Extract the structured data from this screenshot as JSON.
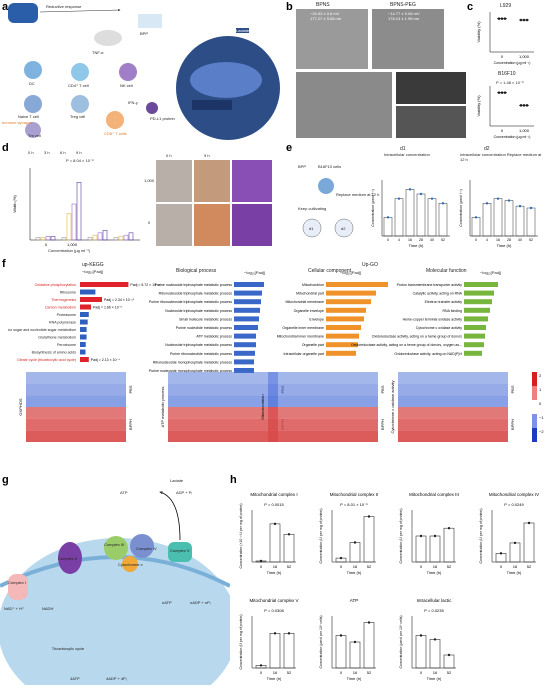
{
  "panel_labels": [
    "a",
    "b",
    "c",
    "d",
    "e",
    "f",
    "g",
    "h"
  ],
  "a": {
    "reductive_response": "Reductive response",
    "bpp": "BPP",
    "tnf": "TNF-α",
    "dc": "DC",
    "cd4": "CD4⁺ T cell",
    "nk": "NK cell",
    "naive": "Naive T cell",
    "treg": "Treg cell",
    "immune_synapse": "Immune synapse",
    "cd8": "CD8⁺ T cells",
    "tm": "Tm cell",
    "ifn": "IFN-γ",
    "pdl1": "PD-L1 protein",
    "lactate": "Lactate",
    "mitochondria_label": "Mitochondria"
  },
  "b": {
    "bpns": "BPNS",
    "bpns_peg": "BPNS-PEG",
    "zeta1": "−24.93 ± 0.6 mV",
    "size1": "177.27 ± 3.06 nm",
    "zeta2": "−14.77 ± 0.06 mV",
    "size2": "178.13 ± 1.95 nm"
  },
  "c": {
    "title1": "L929",
    "title2": "B16F10",
    "p2": "P = 1.48 × 10⁻⁸",
    "ylabel": "Viability (%)",
    "xlabel": "Concentration (μg ml⁻¹)",
    "x": [
      "0",
      "1,000"
    ]
  },
  "d": {
    "legend": [
      "0 h",
      "3 h",
      "6 h",
      "9 h"
    ],
    "p": "P = 8.04 × 10⁻⁸",
    "ylabel": "Width (%)",
    "xlabel": "Concentration (μg ml⁻¹)",
    "x": [
      "0",
      "1,000"
    ],
    "img_cols": [
      "0 h",
      "9 h"
    ],
    "img_rows": [
      "1,000",
      "0"
    ]
  },
  "e": {
    "bpp": "BPP",
    "b16": "B16F10 cells",
    "keep": "Keep cultivating",
    "replace": "Replace medium at 12 h",
    "d1": "d1",
    "d2": "d2",
    "title1": "Intracellular concentration",
    "title2": "Intracellular concentration Replace medium at 12 h",
    "ylabel": "Concentration (μmol l⁻¹)",
    "xlabel": "Time (h)",
    "x": [
      "0",
      "4",
      "16",
      "28",
      "40",
      "52"
    ]
  },
  "f": {
    "kegg_title": "up-KEGG",
    "kegg_axis": "−log₁₀[Padj]",
    "kegg_terms": [
      {
        "name": "Oxidative phosphorylation",
        "red": true,
        "p": "Padj = 5.72 × 10⁻²³"
      },
      {
        "name": "Ribosome",
        "red": false,
        "p": ""
      },
      {
        "name": "Thermogenesis",
        "red": true,
        "p": "Padj = 2.34 × 10⁻¹⁰"
      },
      {
        "name": "Carbon metabolism",
        "red": true,
        "p": "Padj = 1.66 × 10⁻⁵"
      },
      {
        "name": "Proteasome",
        "red": false,
        "p": ""
      },
      {
        "name": "RNA polymerase",
        "red": false,
        "p": ""
      },
      {
        "name": "Amino sugar and nucleotide sugar metabolism",
        "red": false,
        "p": ""
      },
      {
        "name": "Glutathione metabolism",
        "red": false,
        "p": ""
      },
      {
        "name": "Peroxisome",
        "red": false,
        "p": ""
      },
      {
        "name": "Biosynthesis of amino acids",
        "red": false,
        "p": ""
      },
      {
        "name": "Citrate cycle (tricarboxylic acid cycle)",
        "red": true,
        "p": "Padj = 2.13 × 10⁻⁴"
      }
    ],
    "bp_title": "Biological process",
    "bp_axis": "−log₁₀[Padj]",
    "bp_terms": [
      "Purine nucleoside triphosphate metabolic process",
      "Ribonucleoside triphosphate metabolic process",
      "Purine ribonucleoside triphosphate metabolic process",
      "Nucleoside triphosphate metabolic process",
      "Small molecule metabolic process",
      "Purine nucleotide metabolic process",
      "ATP metabolic process",
      "Nucleoside triphosphate metabolic process",
      "Purine ribonucleotide metabolic process",
      "Ribonucleoside monophosphate metabolic process",
      "Purine nucleoside monophosphate metabolic process"
    ],
    "upgo_title": "Up-GO",
    "cc_title": "Cellular component",
    "cc_axis": "−log₁₀[Padj]",
    "cc_terms": [
      "Mitochondrion",
      "Mitochondrial part",
      "Mitochondrial membrane",
      "Organelle envelope",
      "Envelope",
      "Organelle inner membrane",
      "Mitochondrial inner membrane",
      "Organelle part",
      "Intracellular organelle part"
    ],
    "mf_title": "Molecular function",
    "mf_axis": "−log₁₀[Padj]",
    "mf_terms": [
      "Proton transmembrane transporter activity",
      "Catalytic activity, acting on RNA",
      "Electron transfer activity",
      "RNA binding",
      "Heme-copper terminal oxidase activity",
      "Cytochrome c oxidase activity",
      "Oxidoreductase activity, acting on a heme group of donors",
      "Oxidoreductase activity, acting on a heme group of donors, oxygen as...",
      "Oxidoreductase activity, acting on NAD(P)H"
    ],
    "heat_labels": [
      "OXPHOS",
      "ATP metabolic process",
      "Mitochondrion",
      "Cytochrome c oxidase activity"
    ],
    "group_labels": [
      "PBS",
      "BPPH"
    ],
    "colorbar": [
      "2",
      "1",
      "0",
      "−1",
      "−2"
    ]
  },
  "g": {
    "lactate": "Lactate",
    "atp": "ATP",
    "adp": "ADP + Pᵢ",
    "complex1": "Complex I",
    "complex2": "Complex II",
    "complex3": "Complex III",
    "complex4": "Complex IV",
    "complex5": "Complex V",
    "cytc": "Cytochrome c",
    "nad": "NAD⁺ + H⁺",
    "nadh": "NADH",
    "tca": "Tricarboxylic cycle",
    "natp": "nATP",
    "nadp": "nADP + nPᵢ",
    "fatp": "4ATP",
    "fadp": "4ADP + 4Pᵢ"
  },
  "h": {
    "charts": [
      {
        "title": "Mitochondrial complex I",
        "p": "P = 0.0015",
        "ylabel": "Concentration (×10⁻² U per mg of protein)",
        "values": [
          0.3,
          11,
          8
        ],
        "ymax": 15
      },
      {
        "title": "Mitochondrial complex II",
        "p": "P = 8.01 × 10⁻⁵",
        "ylabel": "Concentration (U per mg of protein)",
        "values": [
          3,
          15,
          35
        ],
        "ymax": 40
      },
      {
        "title": "Mitochondrial complex III",
        "p": "",
        "ylabel": "Concentration (U per mg of protein)",
        "values": [
          10,
          10,
          13
        ],
        "ymax": 20
      },
      {
        "title": "Mitochondrial complex IV",
        "p": "P = 0.0249",
        "ylabel": "Concentration (U per mg of protein)",
        "values": [
          10,
          22,
          45
        ],
        "ymax": 60
      },
      {
        "title": "Mitochondrial complex V",
        "p": "P = 0.0308",
        "ylabel": "Concentration (U per mg of protein)",
        "values": [
          0.3,
          4,
          4
        ],
        "ymax": 6
      },
      {
        "title": "ATP",
        "p": "",
        "ylabel": "Concentration (μmol per 10⁶ cells)",
        "values": [
          0.05,
          0.04,
          0.07
        ],
        "ymax": 0.08
      },
      {
        "title": "Intracellular lactic",
        "p": "P = 0.0235",
        "ylabel": "Concentration (μmol per 10⁶ cells)",
        "values": [
          0.25,
          0.22,
          0.1
        ],
        "ymax": 0.4
      }
    ],
    "x": [
      "0",
      "16",
      "52"
    ],
    "xlabel": "Time (h)"
  }
}
